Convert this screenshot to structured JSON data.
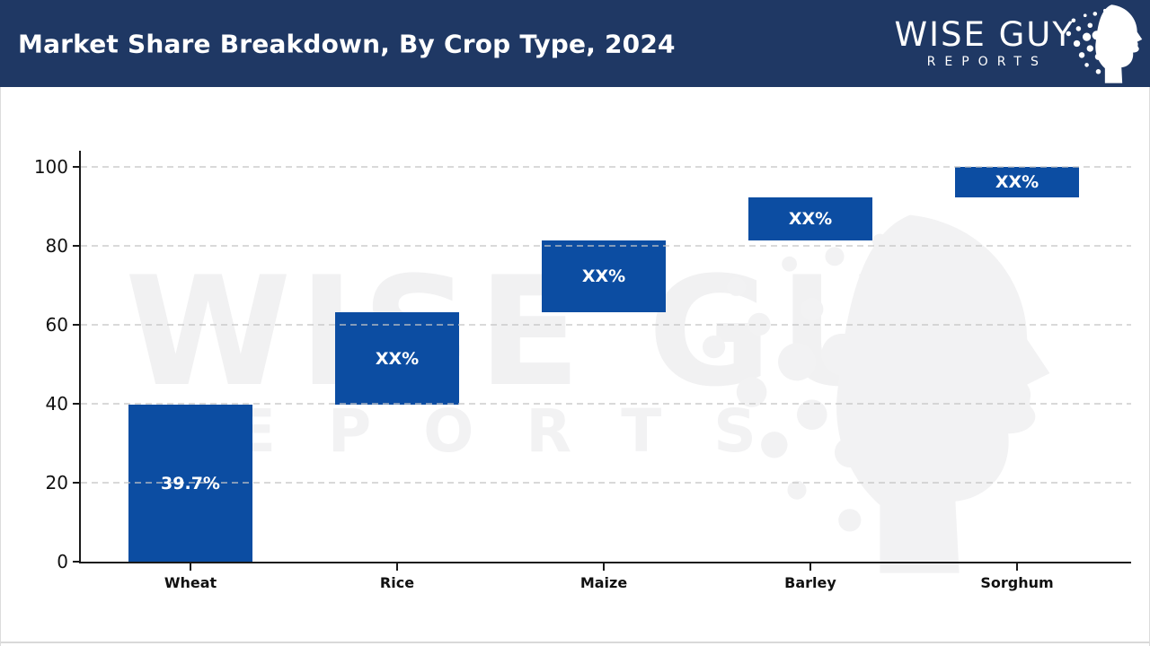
{
  "header": {
    "title": "Market Share Breakdown, By Crop Type, 2024",
    "logo_line1": "WISE GUY",
    "logo_line2": "REPORTS"
  },
  "watermark": {
    "line1": "WISE GU",
    "line2": "REPORTS"
  },
  "colors": {
    "header_bg": "#1f3864",
    "bar": "#0c4da2",
    "bar_label_text": "#ffffff",
    "axis": "#1a1a1a",
    "gridline": "#c5c5c5",
    "watermark": "#f1f1f2"
  },
  "chart_data": {
    "type": "bar",
    "subtype": "waterfall",
    "title": "Market Share Breakdown, By Crop Type, 2024",
    "categories": [
      "Wheat",
      "Rice",
      "Maize",
      "Barley",
      "Sorghum"
    ],
    "segments": [
      {
        "category": "Wheat",
        "start": 0,
        "end": 39.7,
        "label": "39.7%"
      },
      {
        "category": "Rice",
        "start": 39.7,
        "end": 63.1,
        "label": "XX%"
      },
      {
        "category": "Maize",
        "start": 63.1,
        "end": 81.4,
        "label": "XX%"
      },
      {
        "category": "Barley",
        "start": 81.4,
        "end": 92.1,
        "label": "XX%"
      },
      {
        "category": "Sorghum",
        "start": 92.1,
        "end": 100,
        "label": "XX%"
      }
    ],
    "xlabel": "",
    "ylabel": "",
    "ylim": [
      0,
      104
    ],
    "yticks": [
      0,
      20,
      40,
      60,
      80,
      100
    ],
    "grid": "horizontal dashed, drawn over bars",
    "legend": "none"
  }
}
